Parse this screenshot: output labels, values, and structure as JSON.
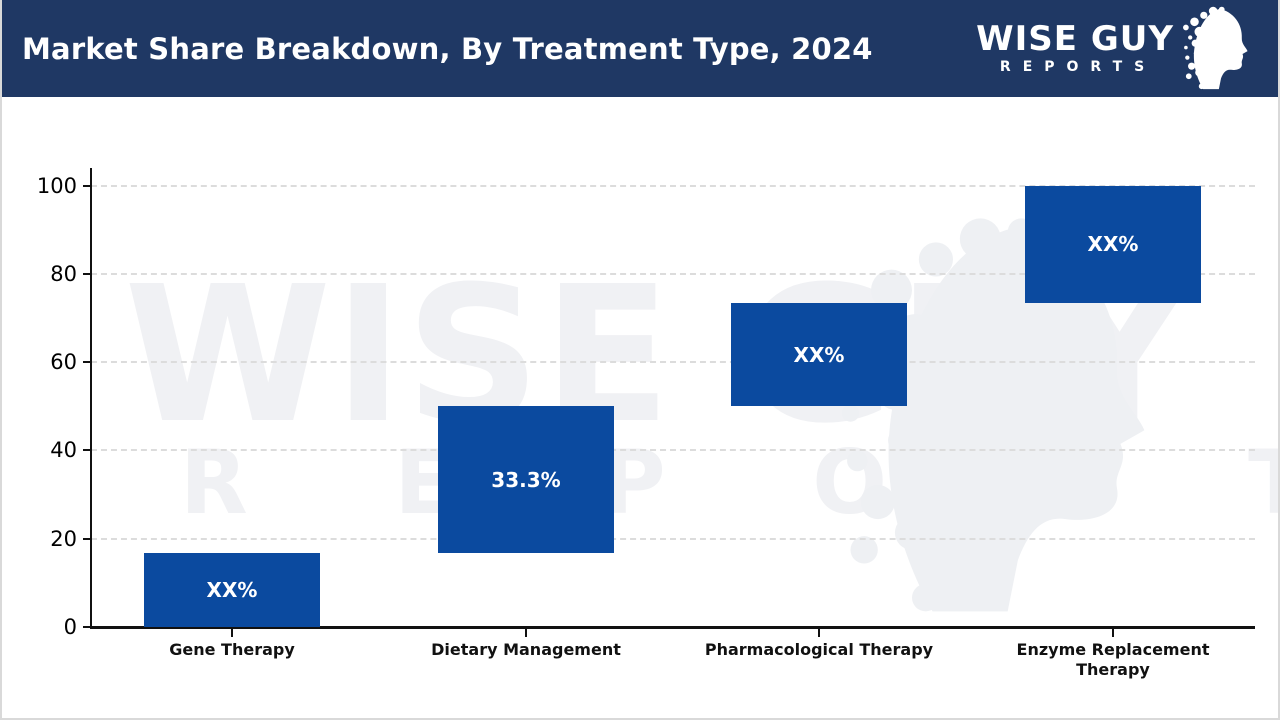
{
  "header": {
    "title": "Market Share Breakdown, By Treatment Type, 2024",
    "logo": {
      "line1": "WISE GUY",
      "line2": "REPORTS",
      "face_icon": "dotted-face-profile"
    }
  },
  "watermark": {
    "line1": "WISE GUY",
    "line2": "R E P O R T S",
    "face_icon": "dotted-face-profile"
  },
  "chart_data": {
    "type": "bar",
    "subtype": "waterfall-floating-bars",
    "title": "Market Share Breakdown, By Treatment Type, 2024",
    "categories": [
      "Gene Therapy",
      "Dietary Management",
      "Pharmacological Therapy",
      "Enzyme Replacement Therapy"
    ],
    "bars": [
      {
        "category": "Gene Therapy",
        "start": 0,
        "end": 16.7,
        "label": "XX%"
      },
      {
        "category": "Dietary Management",
        "start": 16.7,
        "end": 50,
        "label": "33.3%"
      },
      {
        "category": "Pharmacological Therapy",
        "start": 50,
        "end": 73.3,
        "label": "XX%"
      },
      {
        "category": "Enzyme Replacement Therapy",
        "start": 73.3,
        "end": 100,
        "label": "XX%"
      }
    ],
    "xlabel": "",
    "ylabel": "",
    "ylim": [
      0,
      100
    ],
    "yticks": [
      0,
      20,
      40,
      60,
      80,
      100
    ],
    "grid": {
      "horizontal": true,
      "style": "dashed"
    },
    "legend": null,
    "bar_color": "#0b4a9f",
    "bar_label_color": "#ffffff"
  },
  "colors": {
    "header_background": "#1f3864",
    "header_text": "#ffffff",
    "watermark": "#f0f1f4",
    "gridline": "#dcdcdc",
    "axis": "#111111",
    "page_border": "#d9d9d9"
  }
}
